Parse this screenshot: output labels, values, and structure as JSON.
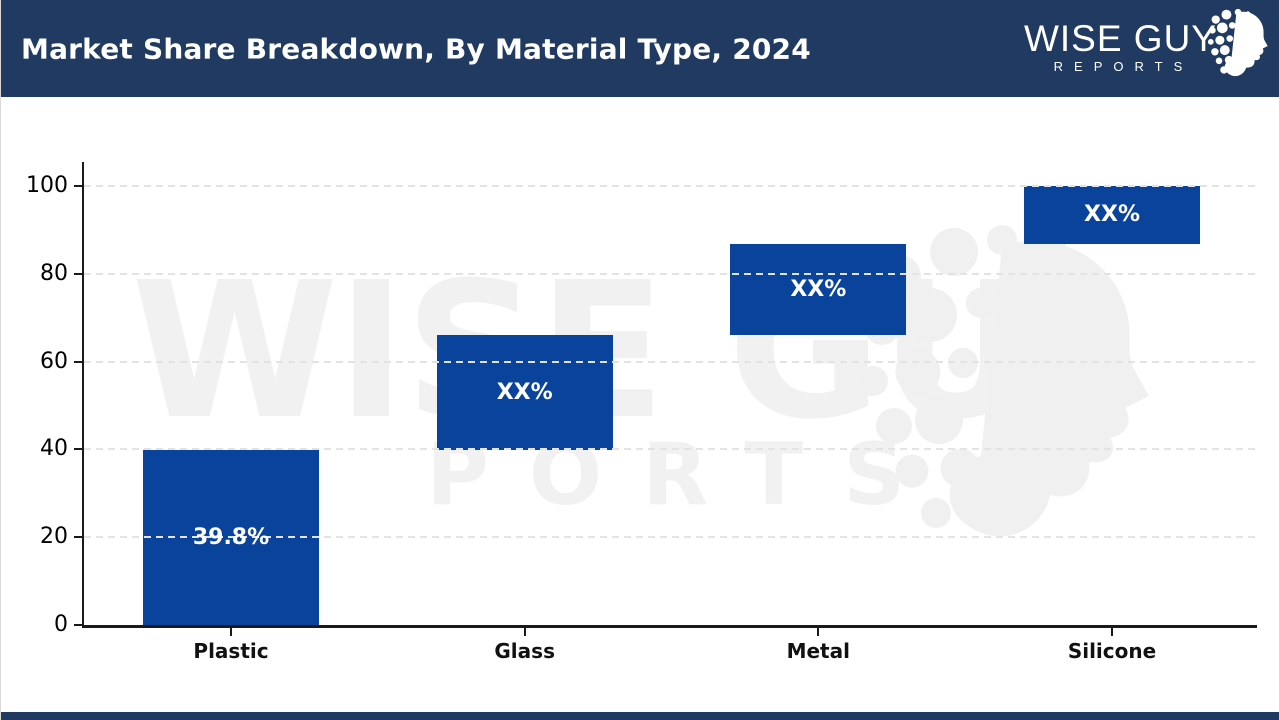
{
  "header": {
    "title": "Market Share Breakdown, By Material Type, 2024",
    "background_color": "#203a61",
    "brand": {
      "line1": "WISE GUY",
      "line2": "REPORTS"
    }
  },
  "watermark": {
    "line1": "WISE GU",
    "line2": "PORTS"
  },
  "chart_data": {
    "type": "bar",
    "subtype": "waterfall",
    "title": "Market Share Breakdown, By Material Type, 2024",
    "categories": [
      "Plastic",
      "Glass",
      "Metal",
      "Silicone"
    ],
    "segments": [
      {
        "category": "Plastic",
        "start": 0,
        "end": 39.8,
        "label": "39.8%"
      },
      {
        "category": "Glass",
        "start": 39.8,
        "end": 66,
        "label": "XX%"
      },
      {
        "category": "Metal",
        "start": 66,
        "end": 86.7,
        "label": "XX%"
      },
      {
        "category": "Silicone",
        "start": 86.7,
        "end": 100,
        "label": "XX%"
      }
    ],
    "xlabel": "",
    "ylabel": "",
    "ylim": [
      0,
      100
    ],
    "yticks": [
      0,
      20,
      40,
      60,
      80,
      100
    ],
    "grid": {
      "axis": "y",
      "style": "dashed",
      "color": "#e3e3e3"
    },
    "legend": "none",
    "bar_color": "#0a439c",
    "bar_label_color": "#ffffff",
    "axis_color": "#1a1a1a"
  }
}
